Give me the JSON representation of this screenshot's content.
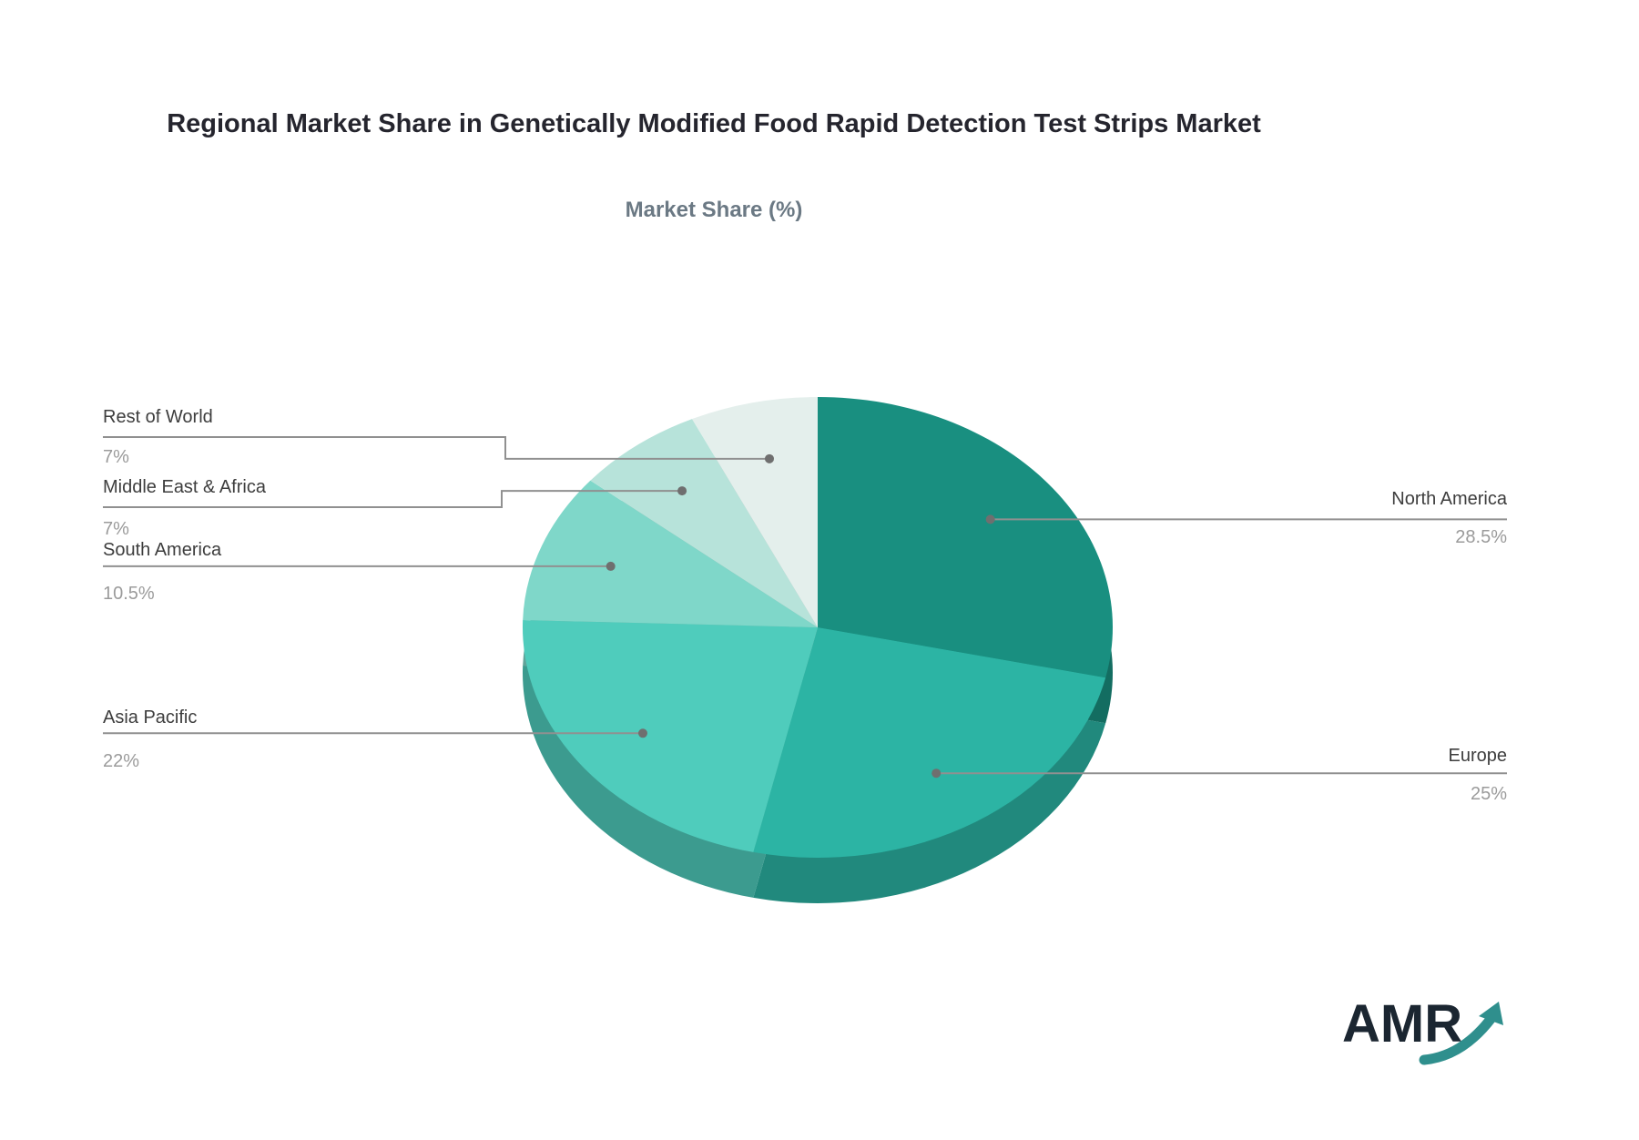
{
  "title": "Regional Market Share in Genetically Modified Food Rapid Detection Test Strips Market",
  "subtitle": "Market Share (%)",
  "logo": {
    "text": "AMR"
  },
  "chart_data": {
    "type": "pie",
    "title": "Regional Market Share in Genetically Modified Food Rapid Detection Test Strips Market",
    "subtitle": "Market Share (%)",
    "unit": "%",
    "effect": "3d",
    "direction": "clockwise",
    "start_angle_deg": 0,
    "label_position": "outside-leader-lines",
    "series": [
      {
        "name": "North America",
        "value": 28.5,
        "label": "28.5%",
        "color": "#198f80"
      },
      {
        "name": "Europe",
        "value": 25,
        "label": "25%",
        "color": "#2cb4a4"
      },
      {
        "name": "Asia Pacific",
        "value": 22,
        "label": "22%",
        "color": "#4fccbc"
      },
      {
        "name": "South America",
        "value": 10.5,
        "label": "10.5%",
        "color": "#7fd7c9"
      },
      {
        "name": "Middle East & Africa",
        "value": 7,
        "label": "7%",
        "color": "#b7e3da"
      },
      {
        "name": "Rest of World",
        "value": 7,
        "label": "7%",
        "color": "#e4efec"
      }
    ],
    "colors": {
      "leader_line": "#909090",
      "leader_dot": "#6f6f6f",
      "label_name": "#3d3d3d",
      "label_value": "#9b9b9b",
      "logo_text": "#1b2631",
      "logo_arrow": "#2f8f8d"
    }
  }
}
